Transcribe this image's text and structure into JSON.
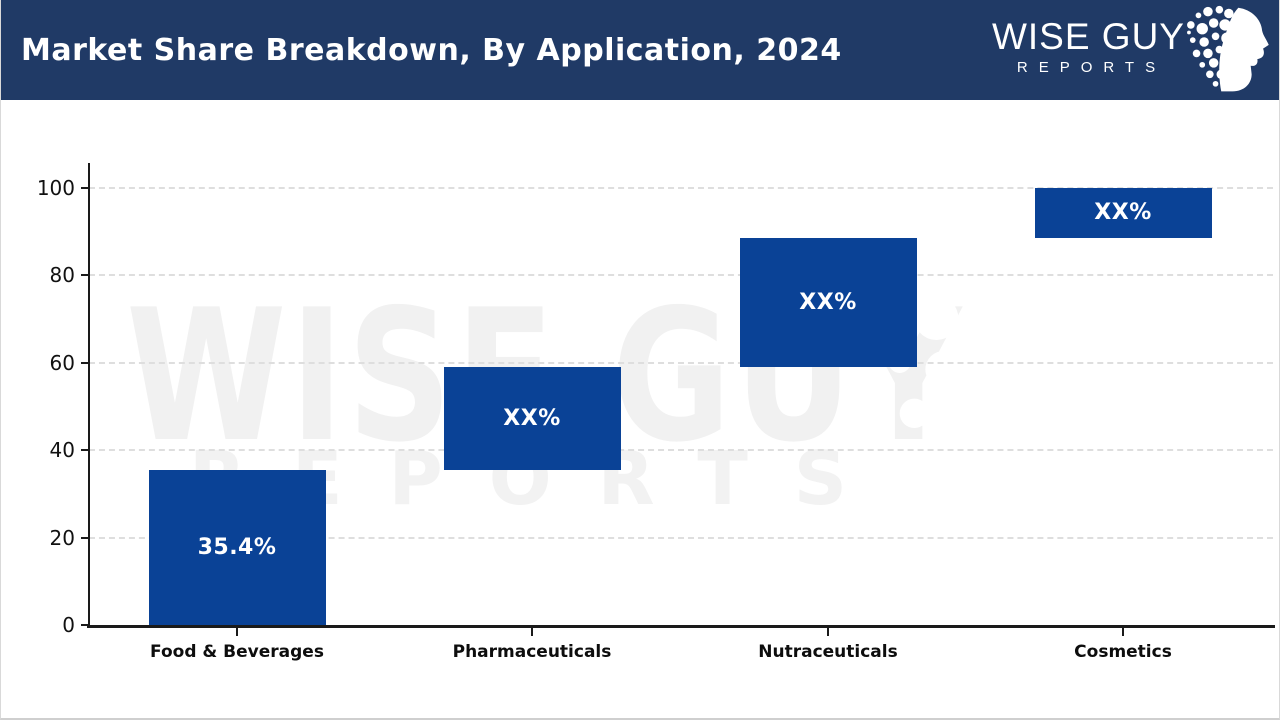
{
  "header": {
    "title": "Market Share Breakdown, By Application, 2024",
    "bg_color": "#203A66",
    "logo": {
      "brand_line1": "WISE GUY",
      "brand_line2": "REPORTS"
    }
  },
  "watermark": {
    "line1": "WISE GUY",
    "line2": "REPORTS"
  },
  "chart_data": {
    "type": "bar",
    "subtype": "floating-segment-waterfall",
    "title": "Market Share Breakdown, By Application, 2024",
    "categories": [
      "Food & Beverages",
      "Pharmaceuticals",
      "Nutraceuticals",
      "Cosmetics"
    ],
    "segments": [
      {
        "category": "Food & Beverages",
        "start": 0,
        "end": 35.4,
        "label": "35.4%"
      },
      {
        "category": "Pharmaceuticals",
        "start": 35.4,
        "end": 59,
        "label": "XX%"
      },
      {
        "category": "Nutraceuticals",
        "start": 59,
        "end": 88.6,
        "label": "XX%"
      },
      {
        "category": "Cosmetics",
        "start": 88.6,
        "end": 100,
        "label": "XX%"
      }
    ],
    "yticks": [
      0,
      20,
      40,
      60,
      80,
      100
    ],
    "ylim": [
      0,
      105.7
    ],
    "xlabel": "",
    "ylabel": "",
    "grid": "horizontal-dashed",
    "legend": "none",
    "bar_color": "#0A4296",
    "bar_label_color": "#FFFFFF"
  }
}
